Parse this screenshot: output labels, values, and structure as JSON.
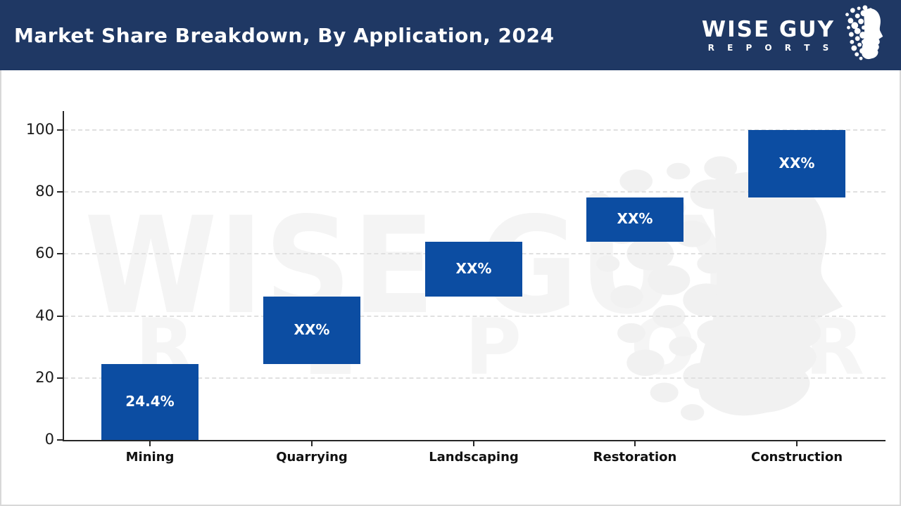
{
  "header": {
    "title": "Market Share Breakdown, By Application, 2024",
    "logo": {
      "line1": "WISE GUY",
      "line2": "R E P O R T S"
    }
  },
  "watermark": {
    "line1": "WISE GUY",
    "line2": "R E P O R T S"
  },
  "colors": {
    "header_bg": "#1f3864",
    "bar": "#0c4da2",
    "axis": "#262626",
    "grid": "#e0e0e0",
    "bar_label_text": "#ffffff",
    "watermark": "#f4f4f4"
  },
  "chart_data": {
    "type": "bar",
    "subtype": "waterfall",
    "title": "Market Share Breakdown, By Application, 2024",
    "categories": [
      "Mining",
      "Quarrying",
      "Landscaping",
      "Restoration",
      "Construction"
    ],
    "segments": [
      {
        "category": "Mining",
        "start": 0,
        "end": 24.4,
        "label": "24.4%"
      },
      {
        "category": "Quarrying",
        "start": 24.4,
        "end": 46.3,
        "label": "XX%"
      },
      {
        "category": "Landscaping",
        "start": 46.3,
        "end": 64.0,
        "label": "XX%"
      },
      {
        "category": "Restoration",
        "start": 64.0,
        "end": 78.2,
        "label": "XX%"
      },
      {
        "category": "Construction",
        "start": 78.2,
        "end": 100,
        "label": "XX%"
      }
    ],
    "units": "%",
    "ylim": [
      0,
      100
    ],
    "yticks": [
      0,
      20,
      40,
      60,
      80,
      100
    ],
    "xlabel": "",
    "ylabel": "",
    "grid": "horizontal-dashed",
    "legend": "none"
  }
}
